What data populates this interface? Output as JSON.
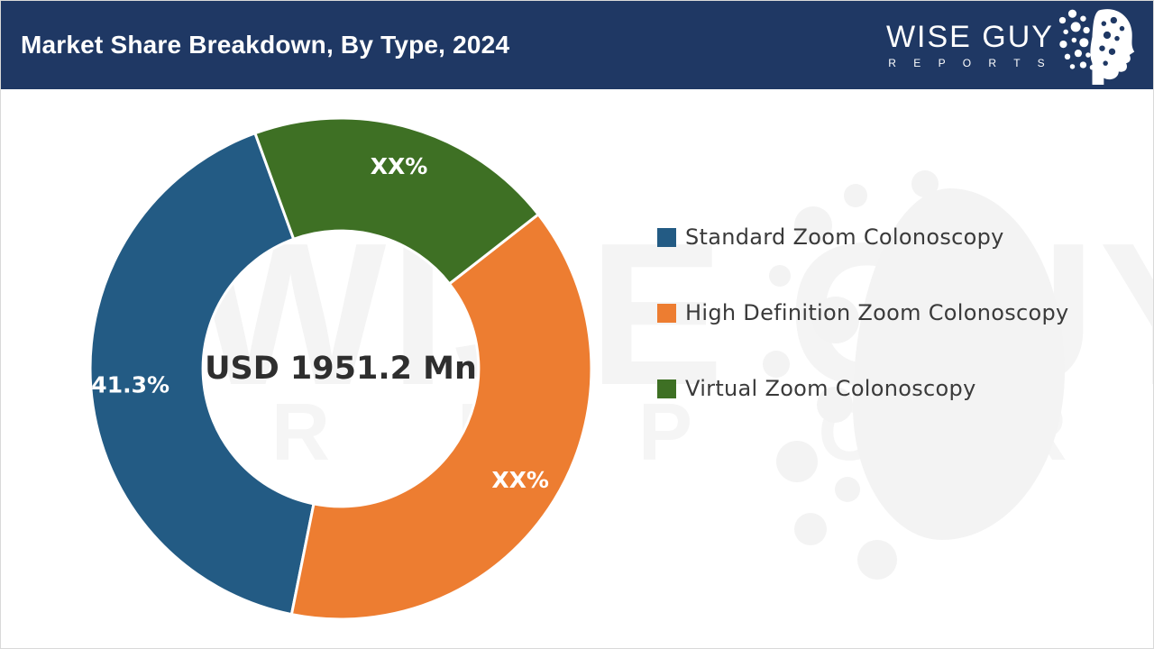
{
  "header": {
    "title": "Market Share Breakdown, By Type, 2024",
    "logo": {
      "name": "WISE GUY",
      "subname": "R E P O R T S"
    }
  },
  "watermark": {
    "line1": "WISE GUY",
    "line2": "R E P O R T S"
  },
  "chart_data": {
    "type": "donut",
    "title": "Market Share Breakdown, By Type, 2024",
    "center_label": "USD 1951.2 Mn",
    "start_angle_deg": 110,
    "direction": "counterclockwise",
    "inner_radius_ratio": 0.55,
    "legend_position": "right",
    "series": [
      {
        "name": "Standard Zoom Colonoscopy",
        "value": 41.3,
        "label": "41.3%",
        "color": "#235b84"
      },
      {
        "name": "High Definition Zoom Colonoscopy",
        "value": 38.7,
        "label": "XX%",
        "color": "#ed7d31"
      },
      {
        "name": "Virtual Zoom Colonoscopy",
        "value": 20.0,
        "label": "XX%",
        "color": "#3e7024"
      }
    ]
  },
  "colors": {
    "header_bg": "#1f3864",
    "page_border": "#d9d9d9",
    "slice_label_text": "#ffffff",
    "center_text": "#2e2e2e",
    "legend_text": "#3a3a3a",
    "watermark": "#f4f4f4"
  }
}
